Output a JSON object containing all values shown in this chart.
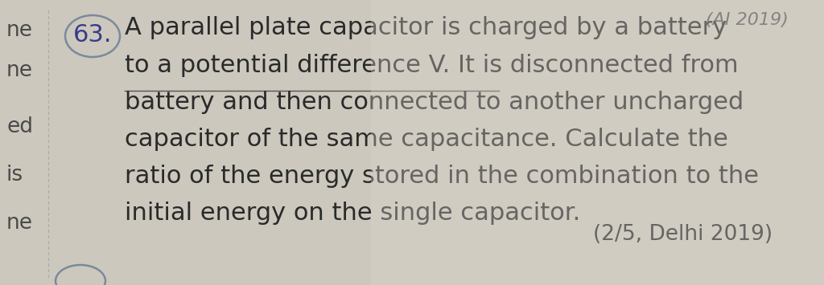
{
  "background_color": "#ccc8be",
  "header_text": "(AI 2019)",
  "question_number": "63.",
  "question_text_lines": [
    "A parallel plate capacitor is charged by a battery",
    "to a potential difference V. It is disconnected from",
    "battery and then connected to another uncharged",
    "capacitor of the same capacitance. Calculate the",
    "ratio of the energy stored in the combination to the",
    "initial energy on the single capacitor."
  ],
  "citation": "(2/5, Delhi 2019)",
  "left_labels": [
    "ne",
    "ne",
    "ed",
    "is",
    "ne"
  ],
  "left_label_color": "#4a4a4a",
  "text_color": "#2a2a2a",
  "number_color": "#3a3a8a",
  "circle_color": "#7a8a9a",
  "header_color": "#5a5a5a",
  "font_size_main": 22,
  "font_size_citation": 19,
  "font_size_header": 16,
  "font_size_left": 19,
  "font_size_number": 22
}
